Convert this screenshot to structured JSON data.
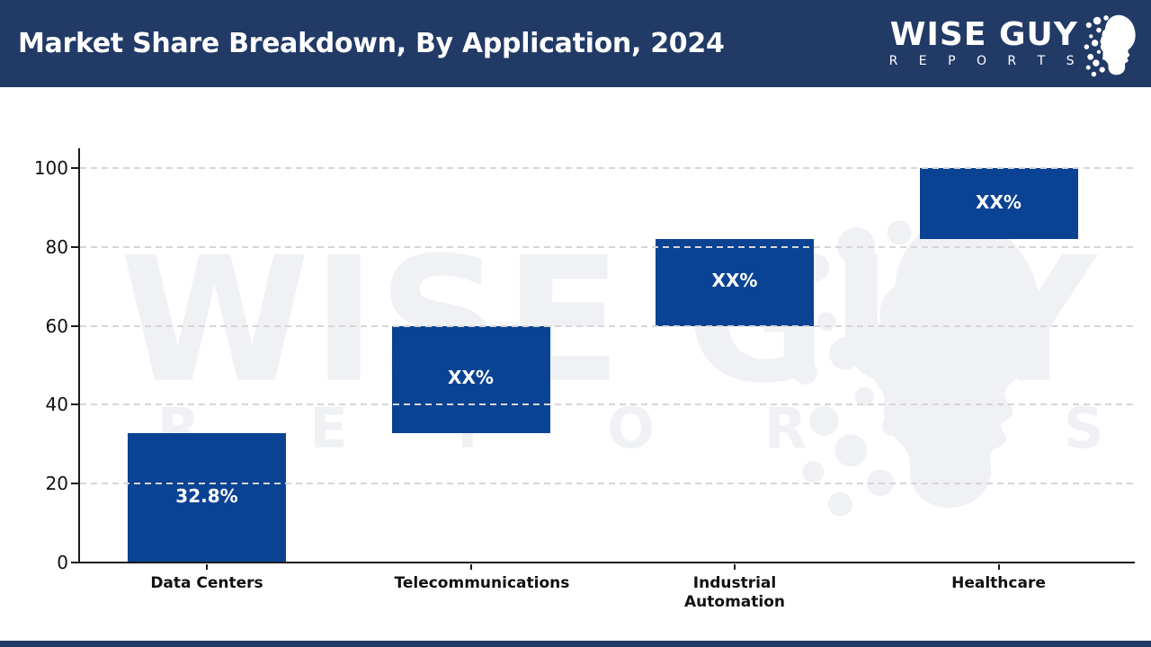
{
  "header": {
    "title": "Market Share Breakdown, By Application, 2024",
    "logo": {
      "line1": "WISE GUY",
      "line2": "R E P O R T S",
      "icon": "face-profile-dots-icon"
    }
  },
  "watermark": {
    "line1": "WISE GUY",
    "line2": "R E P O R T S",
    "icon": "face-profile-dots-icon"
  },
  "colors": {
    "header_bg": "#213a66",
    "bar": "#0b4394",
    "bar_label": "#ffffff",
    "axis": "#1a1a1a",
    "grid": "#d6d6d6",
    "watermark": "#f0f1f4",
    "title_text": "#ffffff"
  },
  "chart_data": {
    "type": "bar",
    "subtype": "waterfall-floating-segments",
    "title": "Market Share Breakdown, By Application, 2024",
    "categories": [
      "Data Centers",
      "Telecommunications",
      "Industrial Automation",
      "Healthcare"
    ],
    "series": [
      {
        "name": "Market Share",
        "segments": [
          {
            "category": "Data Centers",
            "start": 0,
            "end": 32.8,
            "label": "32.8%"
          },
          {
            "category": "Telecommunications",
            "start": 32.8,
            "end": 60,
            "label": "XX%"
          },
          {
            "category": "Industrial Automation",
            "start": 60,
            "end": 82,
            "label": "XX%"
          },
          {
            "category": "Healthcare",
            "start": 82,
            "end": 100,
            "label": "XX%"
          }
        ]
      }
    ],
    "xlabel": "",
    "ylabel": "",
    "yticks": [
      0,
      20,
      40,
      60,
      80,
      100
    ],
    "ylim": [
      0,
      105
    ],
    "grid": "horizontal-dashed",
    "legend": "none"
  }
}
